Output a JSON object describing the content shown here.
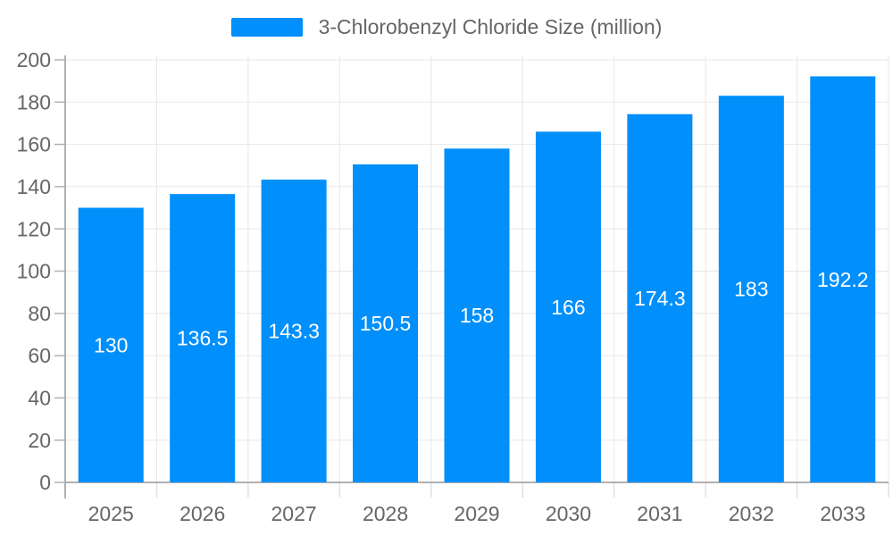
{
  "chart_data": {
    "type": "bar",
    "title": "3-Chlorobenzyl Chloride Size (million)",
    "categories": [
      "2025",
      "2026",
      "2027",
      "2028",
      "2029",
      "2030",
      "2031",
      "2032",
      "2033"
    ],
    "series": [
      {
        "name": "3-Chlorobenzyl Chloride Size (million)",
        "values": [
          130,
          136.5,
          143.3,
          150.5,
          158,
          166,
          174.3,
          183,
          192.2
        ]
      }
    ],
    "value_labels": [
      "130",
      "136.5",
      "143.3",
      "150.5",
      "158",
      "166",
      "174.3",
      "183",
      "192.2"
    ],
    "ytick_labels": [
      "0",
      "20",
      "40",
      "60",
      "80",
      "100",
      "120",
      "140",
      "160",
      "180",
      "200"
    ],
    "xlabel": "",
    "ylabel": "",
    "ylim": [
      0,
      200
    ],
    "ytick_step": 20,
    "grid": true,
    "legend_position": "top",
    "colors": {
      "bar": "#008FFB",
      "value_label": "#ffffff",
      "axis_text": "#666666",
      "legend_text": "#666666",
      "grid_line": "#e7e7e7",
      "x_tick": "#e0e0e0",
      "axis_line": "#b0b0b0",
      "background": "#ffffff"
    }
  }
}
